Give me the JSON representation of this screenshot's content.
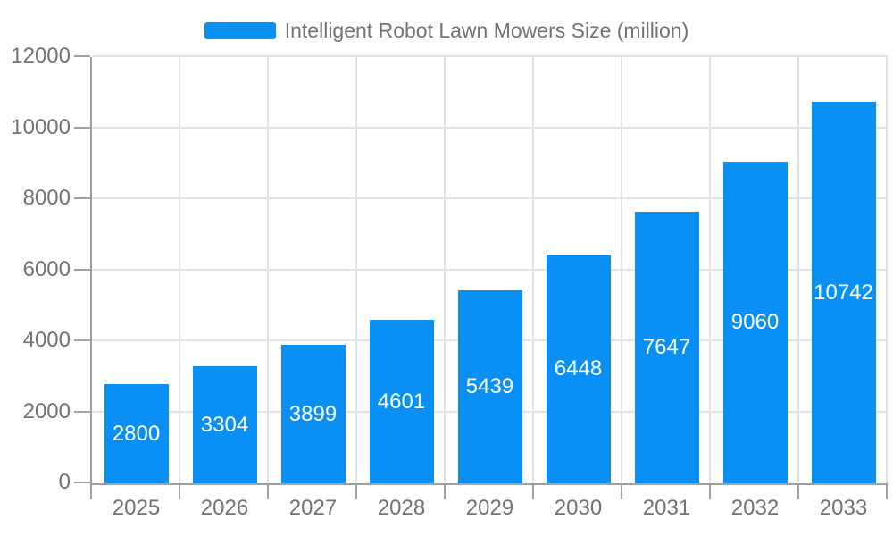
{
  "legend": {
    "label": "Intelligent Robot Lawn Mowers Size (million)"
  },
  "chart_data": {
    "type": "bar",
    "title": "",
    "categories": [
      "2025",
      "2026",
      "2027",
      "2028",
      "2029",
      "2030",
      "2031",
      "2032",
      "2033"
    ],
    "series": [
      {
        "name": "Intelligent Robot Lawn Mowers Size (million)",
        "values": [
          2800,
          3304,
          3899,
          4601,
          5439,
          6448,
          7647,
          9060,
          10742
        ],
        "color": "#0a90f5"
      }
    ],
    "xlabel": "",
    "ylabel": "",
    "ylim": [
      0,
      12000
    ],
    "yticks": [
      0,
      2000,
      4000,
      6000,
      8000,
      10000,
      12000
    ],
    "grid": true,
    "legend_position": "top-center",
    "value_labels": {
      "position": "center-inside",
      "color": "#ffffff"
    }
  },
  "colors": {
    "bar": "#0a90f5",
    "axis": "#a0a0a0",
    "grid": "#e2e2e2",
    "text": "#737373",
    "value_label": "#ffffff",
    "background": "#ffffff"
  }
}
